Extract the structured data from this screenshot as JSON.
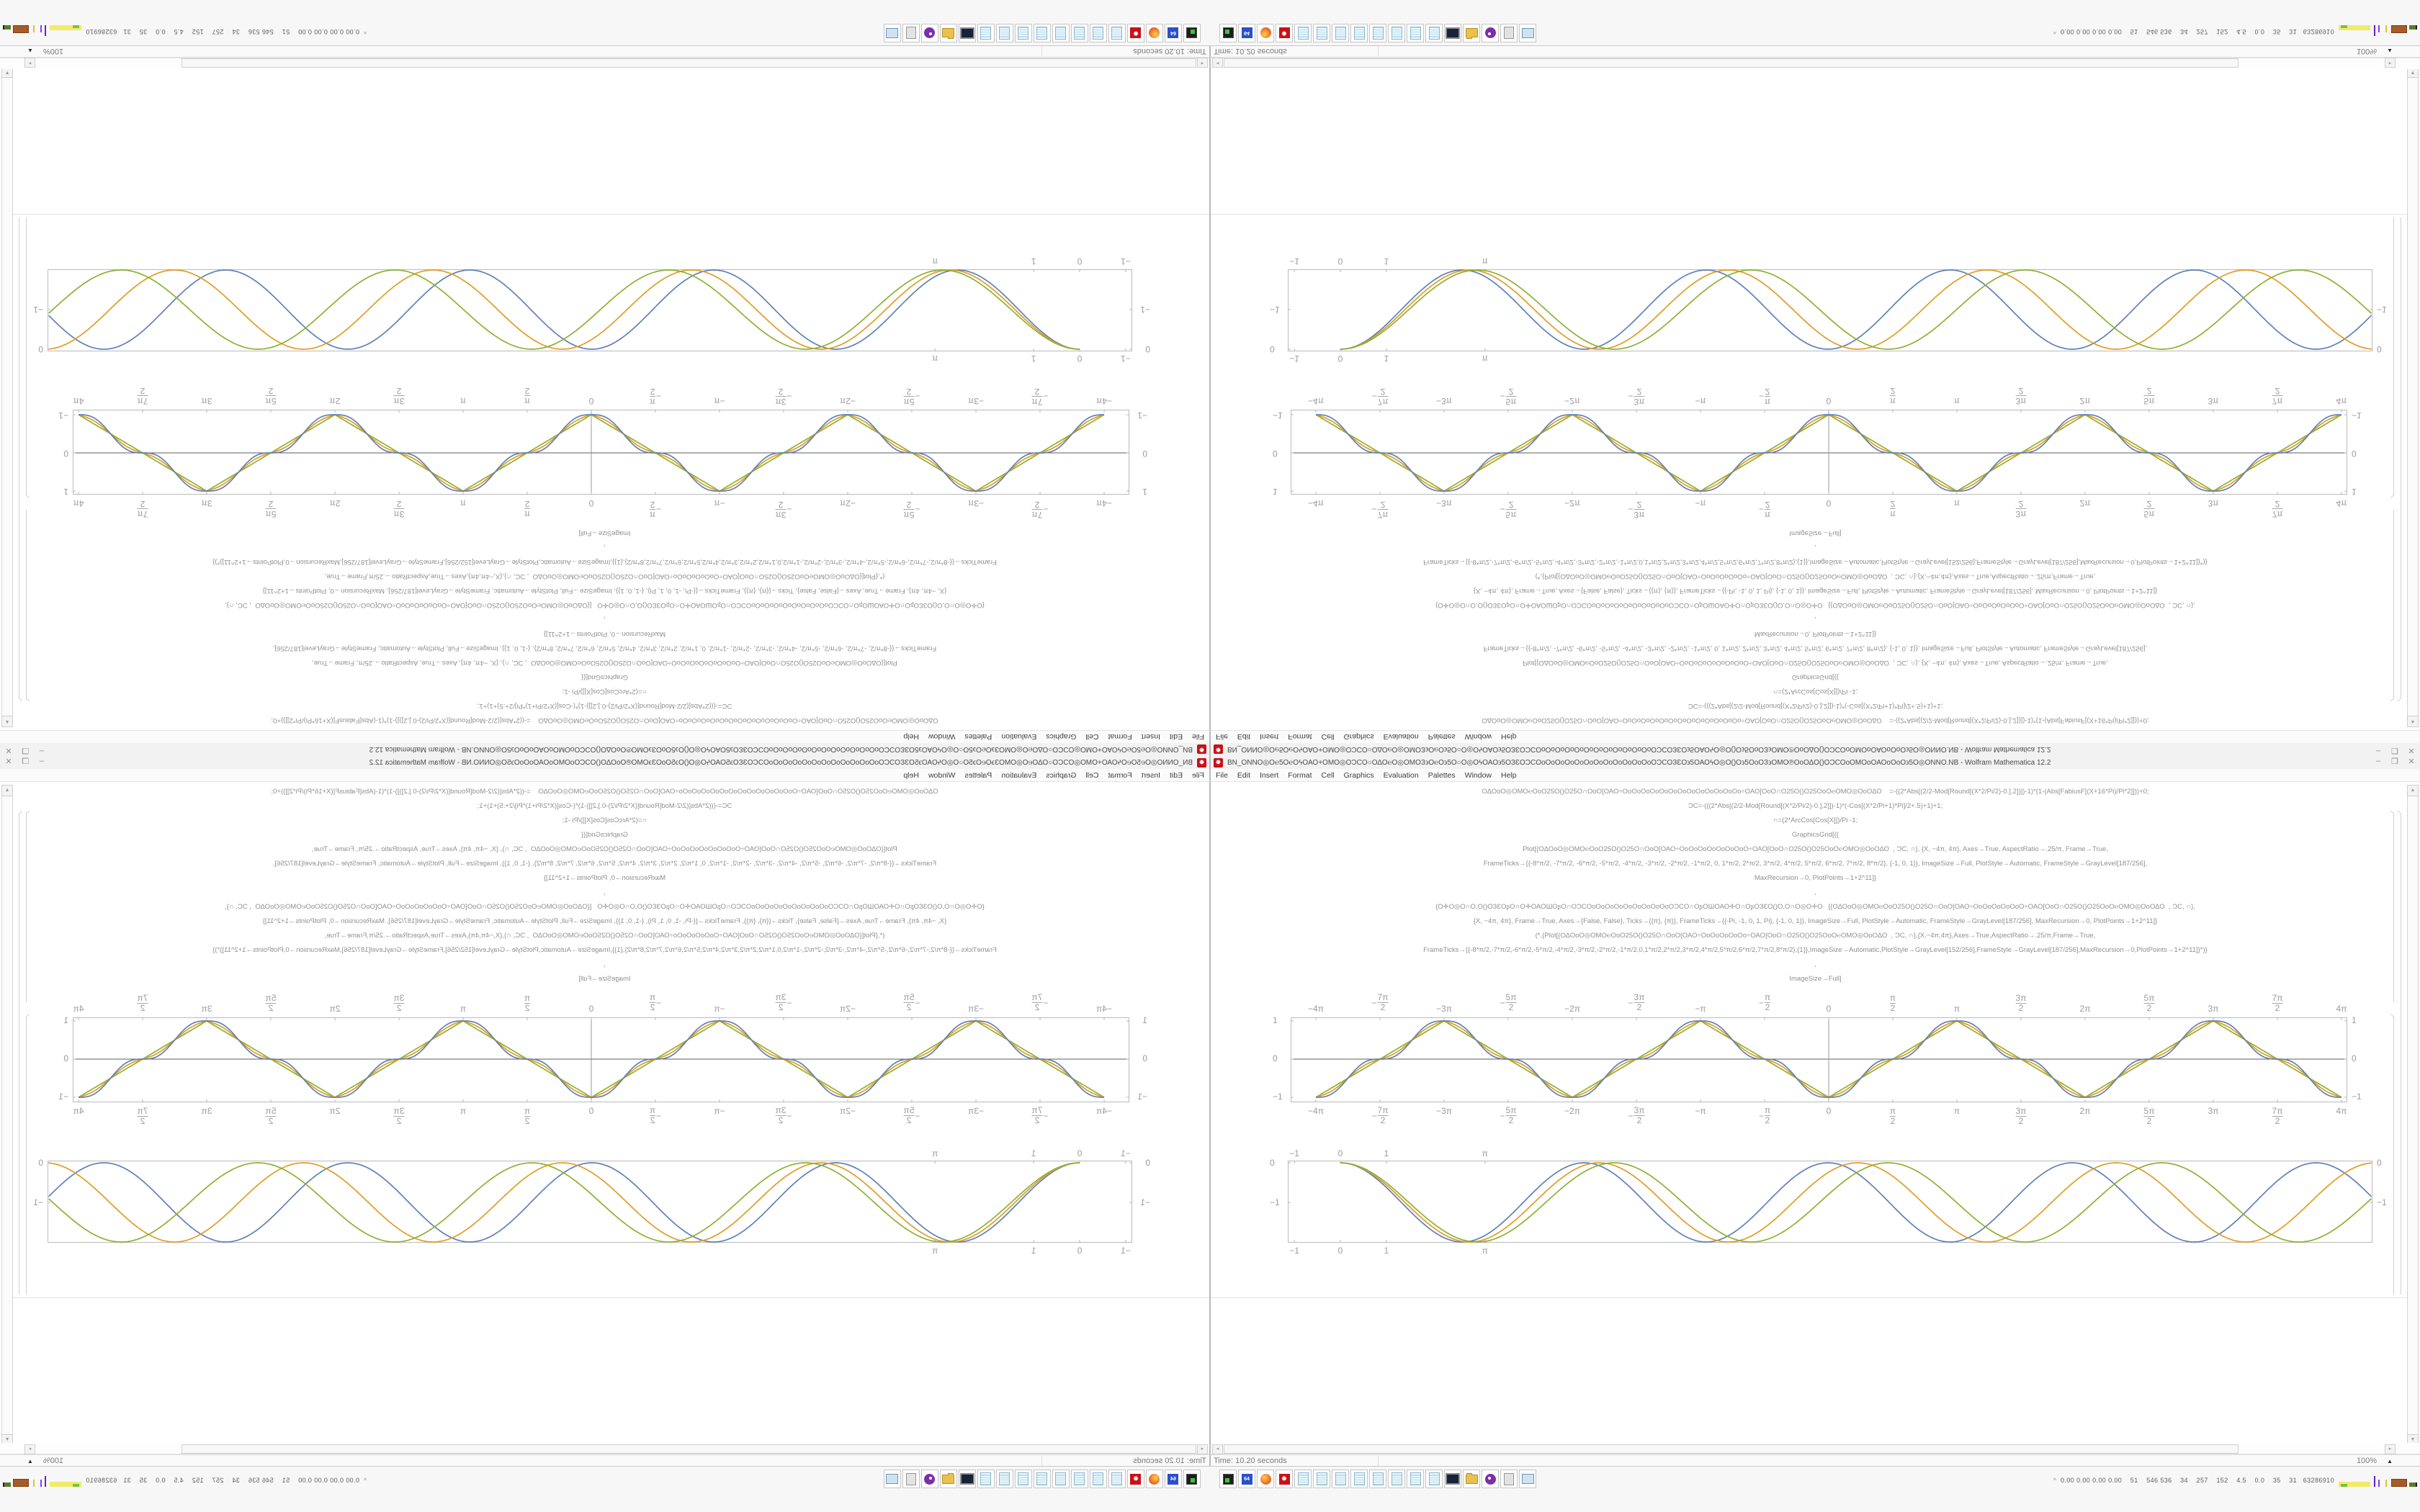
{
  "window": {
    "app_icon": "✹",
    "title": "ΒΝ_ΟΝΝΟ◎Ο℮5Ο℮ΟϟΟΑΟ+ΟΜΟ◎ΟϽϹΟ○ΟΔΟ℮Ο◎ΟΜΟЗ϶Ο℮Ο϶5Ο○Ο◎ΟϟΟΑΟ϶5ΟЗƐΟϽϹΟοΟοΟοΟοΟοΟοΟοΟοΟοΟοΟοΟοΟϽϹΟЗƐΟ϶5ΟΑΟϟΟ◎Ο()Ο϶5ΟοΟЗ϶ΟΜΟ℗ΟοΟΔΟ()ΟϽϹΟοΟΜΟοΟΑΟοΟοΟ϶5Ο◎ΟΝΝΟ.ΝΒ - Wolfram Mathematica 12.2",
    "min_label": "–",
    "restore_label": "❐",
    "close_label": "✕",
    "menu": [
      "File",
      "Edit",
      "Insert",
      "Format",
      "Cell",
      "Graphics",
      "Evaluation",
      "Palettes",
      "Window",
      "Help"
    ],
    "status_time": "Time: 10.20 seconds",
    "magnification": "100%",
    "zoom_popup_icon": "▲",
    "scroll_up_icon": "▲",
    "scroll_down_icon": "▼",
    "scroll_left_icon": "◂",
    "scroll_right_icon": "▸"
  },
  "code": {
    "lines": [
      "ΟΔΟοΟ◎ΟΜΟ℮ΟοΟ25Ο()Ο25Ο∩ΟοΟ[ΟΑΟ÷ΟοΟοΟοΟοΟοΟοΟοΟοΟοΟοΟοΟοΟο÷ΟΑΟ[ΟοΟ∩Ο25Ο()Ο25ΟοΟ℮ΟΜΟ◎ΟοΟΔΟ    =-((2*Abs[(2/2-Mod[Round[(X*2/Pi/2)-0.],2])])-1)*(1-(Abs[FabiusF[(X+16*Pi)/Pi*2]]))+0;",
      "ƆC=-(((2*Abs[(2/2-Mod[Round[(X*2/Pi/2)-0.],2]])-1)*(-Cos[(X*2/Pi+1)*Pi]/2+.5)+1)+1;",
      "∩=(2*ArcCos[Cos[X]])/Pi -1;",
      "GraphicsGrid[{{",
      "Plot[{ΟΔΟοΟ◎ΟΜΟ℮ΟοΟ25Ο()Ο25Ο∩ΟοΟ[ΟΑΟ÷ΟοΟοΟοΟοΟοΟοΟοΟ÷ΟΑΟ[ΟοΟ∩Ο25Ο()Ο25ΟοΟ℮ΟΜΟ◎ΟοΟΔΟ  , ƆC, ∩}, {X, −4π, 4π}, Axes→True, AspectRatio→.25/π, Frame→True,",
      "FrameTicks→{{-8*π/2, -7*π/2, -6*π/2, -5*π/2, -4*π/2, -3*π/2, -2*π/2, -1*π/2, 0, 1*π/2, 2*π/2, 3*π/2, 4*π/2, 5*π/2, 6*π/2, 7*π/2, 8*π/2}, {-1, 0, 1}}, ImageSize→Full, PlotStyle→Automatic, FrameStyle→GrayLevel[187/256],",
      "MaxRecursion→0, PlotPoints→1+2^11]}",
      ",",
      "{Ο✛Ο◎Ο∩Ο,Ο()ΟЗƐΟʂΟ∩Ο✛ΟΑΟШΟʂΟ∩ΟƆϹΟοΟοΟοΟοΟοΟοΟοΟοΟοΟƆϹΟ∩ΟʂΟШΟΑΟ✛Ο∩ΟʂΟЗƐΟ()Ο,Ο∩Ο◎Ο✛Ο   [{ΟΔΟοΟ◎ΟΜΟ℮ΟοΟ25Ο()Ο25Ο∩ΟοΟ[ΟΑΟ÷ΟοΟοΟοΟοΟοΟ÷ΟΑΟ[ΟοΟ∩Ο25Ο()Ο25ΟοΟ℮ΟΜΟ◎ΟοΟΔΟ  , ƆC, ∩},",
      "{X, −4π, 4π}, Frame→True, Axes→{False, False}, Ticks→{{π}, {π}}, FrameTicks→{{-Pi, -1, 0, 1, Pi}, {-1, 0, 1}}, ImageSize→Full, PlotStyle→Automatic, FrameStyle→GrayLevel[187/256], MaxRecursion→0, PlotPoints→1+2^11]}",
      "(*,{Plot[{ΟΔΟοΟ◎ΟΜΟ℮ΟοΟ25Ο()Ο25Ο∩ΟοΟ[ΟΑΟ÷ΟοΟοΟοΟοΟο÷ΟΑΟ[ΟοΟ∩Ο25Ο()Ο25ΟοΟ℮ΟΜΟ◎ΟοΟΔΟ  , ƆC, ∩},{X,−4π,4π},Axes→True,AspectRatio→.25/π,Frame→True,",
      "FrameTicks→{{-8*π/2,-7*π/2,-6*π/2,-5*π/2,-4*π/2,-3*π/2,-2*π/2,-1*π/2,0,1*π/2,2*π/2,3*π/2,4*π/2,5*π/2,6*π/2,7*π/2,8*π/2},{1}},ImageSize→Automatic,PlotStyle→GrayLevel[152/256],FrameStyle→GrayLevel[187/256],MaxRecursion→0,PlotPoints→1+2^11]}*)}",
      ",",
      "ImageSize→Full]"
    ]
  },
  "chart_data": [
    {
      "type": "line",
      "id": "p1",
      "title": "",
      "xlabel": "",
      "ylabel": "",
      "x_range_pi": [
        -4,
        4
      ],
      "ylim": [
        -1,
        1
      ],
      "frame": true,
      "axes": true,
      "grid": false,
      "x_ticks": [
        {
          "u": -8,
          "t": "−4π"
        },
        {
          "u": -7,
          "neg": true,
          "n": "7π",
          "d": "2"
        },
        {
          "u": -6,
          "t": "−3π"
        },
        {
          "u": -5,
          "neg": true,
          "n": "5π",
          "d": "2"
        },
        {
          "u": -4,
          "t": "−2π"
        },
        {
          "u": -3,
          "neg": true,
          "n": "3π",
          "d": "2"
        },
        {
          "u": -2,
          "t": "−π"
        },
        {
          "u": -1,
          "neg": true,
          "n": "π",
          "d": "2"
        },
        {
          "u": 0,
          "t": "0"
        },
        {
          "u": 1,
          "n": "π",
          "d": "2"
        },
        {
          "u": 2,
          "t": "π"
        },
        {
          "u": 3,
          "n": "3π",
          "d": "2"
        },
        {
          "u": 4,
          "t": "2π"
        },
        {
          "u": 5,
          "n": "5π",
          "d": "2"
        },
        {
          "u": 6,
          "t": "3π"
        },
        {
          "u": 7,
          "n": "7π",
          "d": "2"
        },
        {
          "u": 8,
          "t": "4π"
        }
      ],
      "y_ticks": [
        {
          "v": 1,
          "t": "1"
        },
        {
          "v": 0,
          "t": "0"
        },
        {
          "v": -1,
          "t": "−1"
        }
      ],
      "series": [
        {
          "name": "fabius-plateau-wave",
          "color": "#5e81b5",
          "form": "plateau-triangle",
          "smooth": 1.0,
          "period": "2π",
          "peaks_at": "odd π",
          "min": -1,
          "max": 1
        },
        {
          "name": "cos-modified-wave",
          "color": "#e19c24",
          "form": "plateau-triangle",
          "smooth": 0.5,
          "period": "2π",
          "min": -1,
          "max": 1
        },
        {
          "name": "arccos-triangle-wave",
          "color": "#8fb032",
          "form": "plateau-triangle",
          "smooth": 0.0,
          "period": "2π",
          "min": -1,
          "max": 1
        }
      ]
    },
    {
      "type": "line",
      "id": "p2",
      "title": "",
      "xlabel": "",
      "ylabel": "",
      "x_domain": [
        0,
        22.4
      ],
      "ylim": [
        -2.07,
        0.05
      ],
      "frame": true,
      "axes": false,
      "grid": false,
      "x_ticks": [
        {
          "v": -1,
          "t": "−1"
        },
        {
          "v": 0,
          "t": "0"
        },
        {
          "v": 1,
          "t": "1"
        },
        {
          "v": 3.14159,
          "t": "π"
        }
      ],
      "y_ticks": [
        {
          "v": 0,
          "t": "0"
        },
        {
          "v": -1,
          "t": "−1"
        }
      ],
      "series": [
        {
          "name": "cos-shifted-blue",
          "color": "#5e81b5",
          "form": "cos-minus-one",
          "period": 5.3,
          "start": [
            0,
            0
          ],
          "min": -2
        },
        {
          "name": "cos-shifted-orange",
          "color": "#e19c24",
          "form": "cos-minus-one",
          "period": 5.62,
          "start": [
            0,
            0
          ],
          "min": -2
        },
        {
          "name": "cos-shifted-green",
          "color": "#8fb032",
          "form": "cos-minus-one",
          "period": 5.95,
          "start": [
            0,
            0
          ],
          "min": -2
        }
      ]
    }
  ],
  "taskbar": {
    "launchers": [
      {
        "name": "terminal",
        "type": "term"
      },
      {
        "name": "disk-64",
        "type": "disk",
        "label": "64"
      },
      {
        "name": "firefox",
        "type": "ff"
      },
      {
        "name": "mathematica",
        "type": "wm",
        "glyph": "✹"
      },
      {
        "name": "notepad-1",
        "type": "note"
      },
      {
        "name": "notepad-2",
        "type": "note"
      },
      {
        "name": "notepad-3",
        "type": "note"
      },
      {
        "name": "notepad-4",
        "type": "note"
      },
      {
        "name": "notepad-5",
        "type": "note"
      },
      {
        "name": "notepad-6",
        "type": "note"
      },
      {
        "name": "notepad-7",
        "type": "note"
      },
      {
        "name": "notepad-8",
        "type": "note"
      },
      {
        "name": "monitor",
        "type": "mon"
      },
      {
        "name": "folder",
        "type": "folder"
      },
      {
        "name": "purple-app",
        "type": "purple"
      },
      {
        "name": "scroll-doc",
        "type": "scroll"
      },
      {
        "name": "window-app",
        "type": "win"
      }
    ],
    "monitor": {
      "collapse_icon": "^",
      "numbers": "0.00 0.00 0.00 0.00    51    546 536    34    257    152    4.5    0.0    35    31   63286910"
    }
  },
  "colors": {
    "accent_red": "#cc0f16",
    "plot_blue": "#5e81b5",
    "plot_orange": "#e19c24",
    "plot_green": "#8fb032",
    "frame_gray": "#bbbbbb",
    "tick_text": "#9a9a9a",
    "code_text": "#8f8f8f"
  }
}
